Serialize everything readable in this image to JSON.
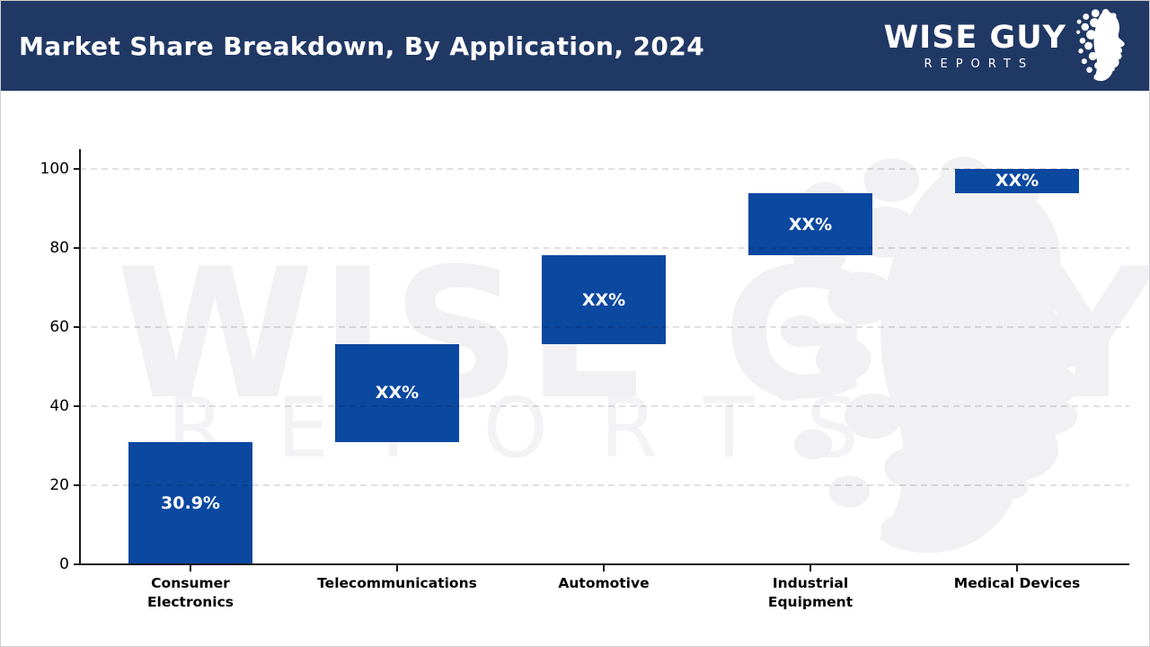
{
  "header": {
    "title": "Market Share Breakdown, By Application, 2024",
    "logo": {
      "line1": "WISE GUY",
      "line2": "REPORTS"
    }
  },
  "watermark": {
    "line1": "WISE GUY",
    "line2": "REPORTS"
  },
  "colors": {
    "header_bg": "#203864",
    "bar": "#0b48a0",
    "grid": "#e0e0e0",
    "watermark": "#f1f1f3"
  },
  "chart_data": {
    "type": "bar",
    "subtype": "waterfall",
    "title": "Market Share Breakdown, By Application, 2024",
    "xlabel": "",
    "ylabel": "",
    "ylim": [
      0,
      100
    ],
    "yticks": [
      0,
      20,
      40,
      60,
      80,
      100
    ],
    "grid": true,
    "legend": false,
    "bar_color": "#0b48a0",
    "categories": [
      "Consumer\nElectronics",
      "Telecommunications",
      "Automotive",
      "Industrial\nEquipment",
      "Medical Devices"
    ],
    "segments": [
      {
        "start": 0,
        "end": 30.9,
        "label": "30.9%"
      },
      {
        "start": 30.9,
        "end": 55.7,
        "label": "XX%"
      },
      {
        "start": 55.7,
        "end": 78.1,
        "label": "XX%"
      },
      {
        "start": 78.1,
        "end": 93.9,
        "label": "XX%"
      },
      {
        "start": 93.9,
        "end": 100,
        "label": "XX%"
      }
    ]
  }
}
